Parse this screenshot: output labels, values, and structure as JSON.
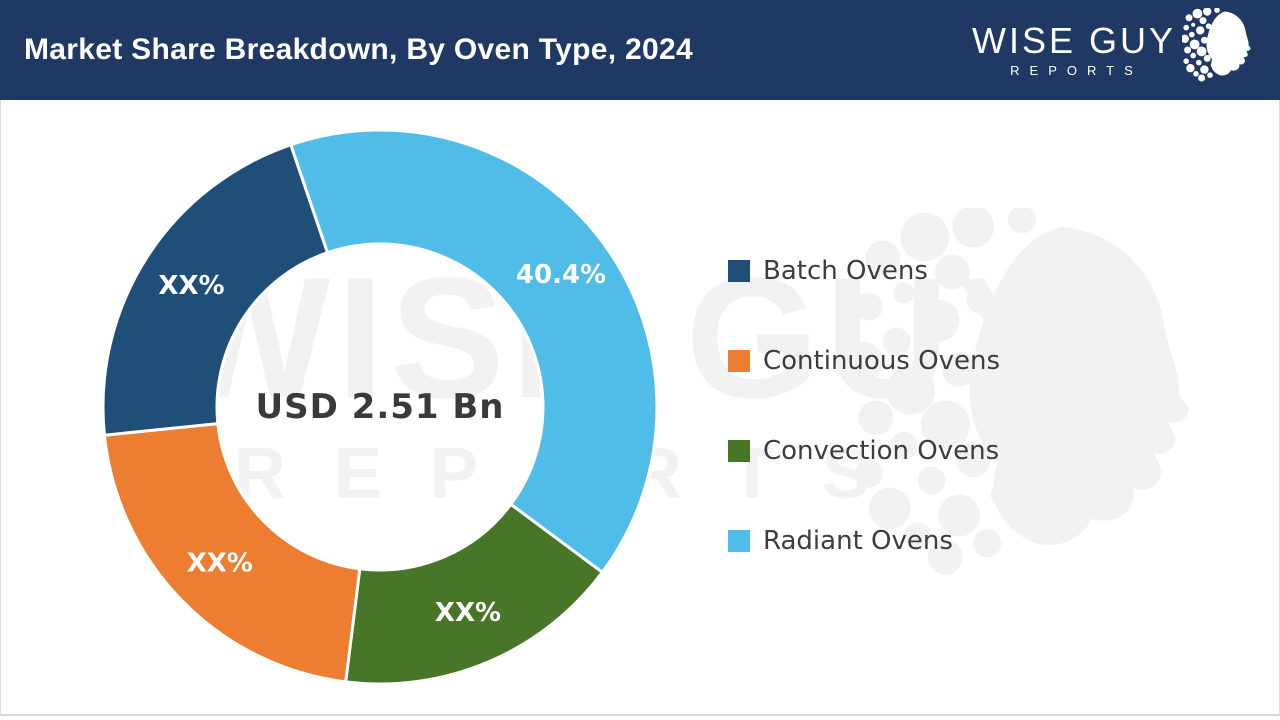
{
  "header": {
    "title": "Market Share Breakdown, By Oven Type, 2024",
    "bg_color": "#1f3864",
    "logo": {
      "line1": "WISE GUY",
      "line2": "REPORTS"
    }
  },
  "watermark": {
    "line1": "WISE GUY",
    "line2": "REPORTS"
  },
  "chart_data": {
    "type": "pie",
    "variant": "donut",
    "title": "Market Share Breakdown, By Oven Type, 2024",
    "center_label": "USD 2.51 Bn",
    "start_angle_deg": -18.8,
    "rotation": "clockwise",
    "legend_position": "right",
    "segments": [
      {
        "name": "Radiant Ovens",
        "display_label": "40.4%",
        "value_pct": 40.4,
        "color": "#4fbde7"
      },
      {
        "name": "Convection Ovens",
        "display_label": "XX%",
        "value_pct": 16.8,
        "color": "#477628"
      },
      {
        "name": "Continuous Ovens",
        "display_label": "XX%",
        "value_pct": 21.4,
        "color": "#ed7d31"
      },
      {
        "name": "Batch Ovens",
        "display_label": "XX%",
        "value_pct": 21.4,
        "color": "#1f4e79"
      }
    ],
    "legend": [
      {
        "label": "Batch Ovens",
        "color": "#1f4e79"
      },
      {
        "label": "Continuous Ovens",
        "color": "#ed7d31"
      },
      {
        "label": "Convection Ovens",
        "color": "#477628"
      },
      {
        "label": "Radiant Ovens",
        "color": "#4fbde7"
      }
    ]
  },
  "colors": {
    "header_bg": "#1f3864",
    "label_text": "#ffffff",
    "body_text": "#3d3d3d",
    "watermark": "#f2f2f2",
    "divider": "#d9d9d9"
  }
}
